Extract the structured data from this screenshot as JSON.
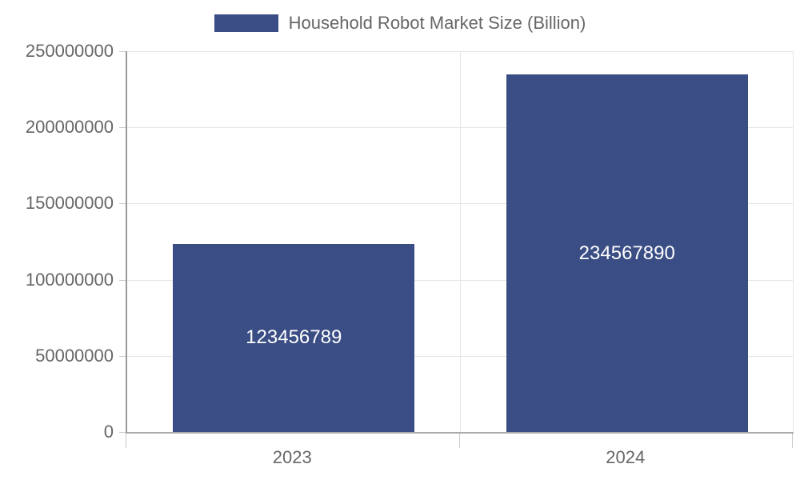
{
  "legend": {
    "series_label": "Household Robot Market Size (Billion)"
  },
  "colors": {
    "bar": "#3A4D84",
    "text": "#666666",
    "grid": "#e6e6e6",
    "y_axis_line": "#9a9a9a",
    "x_axis_line": "#ababab",
    "tick": "#cccccc",
    "value_label": "#ffffff",
    "background": "#ffffff"
  },
  "chart_data": {
    "type": "bar",
    "title": "",
    "xlabel": "",
    "ylabel": "",
    "categories": [
      "2023",
      "2024"
    ],
    "series": [
      {
        "name": "Household Robot Market Size (Billion)",
        "values": [
          123456789,
          234567890
        ]
      }
    ],
    "value_labels": [
      "123456789",
      "234567890"
    ],
    "ylim": [
      0,
      250000000
    ],
    "yticks": [
      0,
      50000000,
      100000000,
      150000000,
      200000000,
      250000000
    ],
    "ytick_labels": [
      "0",
      "50000000",
      "100000000",
      "150000000",
      "200000000",
      "250000000"
    ],
    "grid": true,
    "legend_position": "top-center",
    "bar_width_fraction": 0.725
  }
}
